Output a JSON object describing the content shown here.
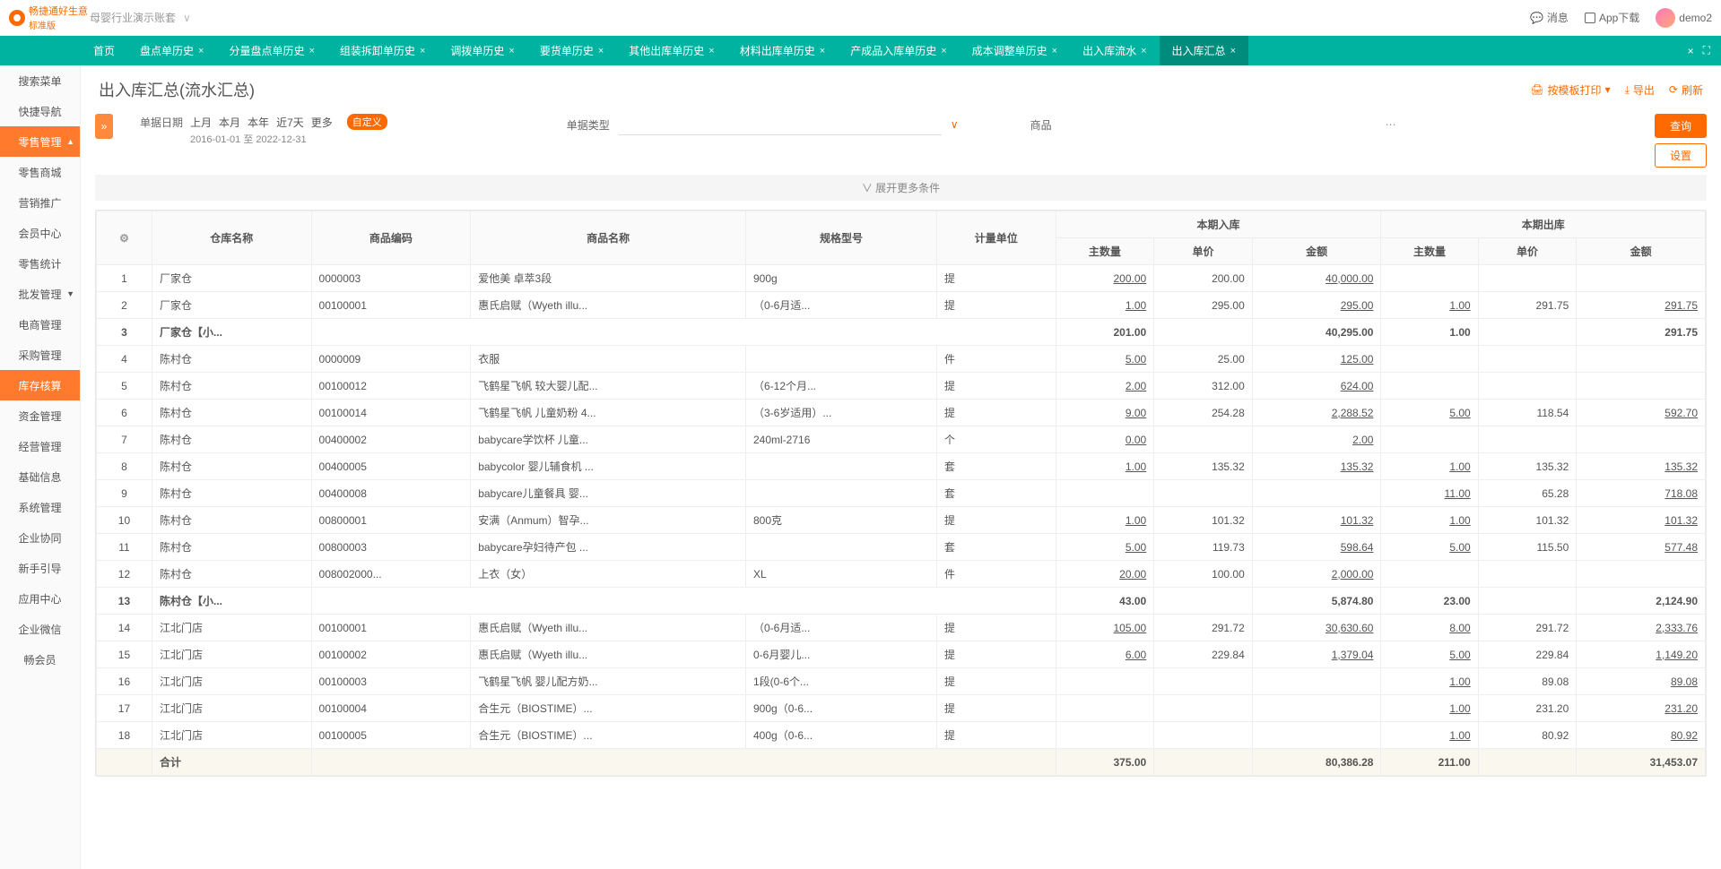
{
  "topbar": {
    "logo_text": "畅捷通好生意",
    "logo_badge": "标准版",
    "account": "母婴行业演示账套",
    "msg": "消息",
    "app": "App下载",
    "user": "demo2"
  },
  "tabs": [
    {
      "label": "首页",
      "closable": false
    },
    {
      "label": "盘点单历史",
      "closable": true
    },
    {
      "label": "分量盘点单历史",
      "closable": true
    },
    {
      "label": "组装拆卸单历史",
      "closable": true
    },
    {
      "label": "调拨单历史",
      "closable": true
    },
    {
      "label": "要货单历史",
      "closable": true
    },
    {
      "label": "其他出库单历史",
      "closable": true
    },
    {
      "label": "材料出库单历史",
      "closable": true
    },
    {
      "label": "产成品入库单历史",
      "closable": true
    },
    {
      "label": "成本调整单历史",
      "closable": true
    },
    {
      "label": "出入库流水",
      "closable": true
    },
    {
      "label": "出入库汇总",
      "closable": true,
      "active": true
    }
  ],
  "sidebar": [
    {
      "label": "搜索菜单"
    },
    {
      "label": "快捷导航"
    },
    {
      "label": "零售管理",
      "expand": "▲",
      "active": true
    },
    {
      "label": "零售商城"
    },
    {
      "label": "营销推广"
    },
    {
      "label": "会员中心"
    },
    {
      "label": "零售统计"
    },
    {
      "label": "批发管理",
      "expand": "▼"
    },
    {
      "label": "电商管理"
    },
    {
      "label": "采购管理"
    },
    {
      "label": "库存核算",
      "active": true
    },
    {
      "label": "资金管理"
    },
    {
      "label": "经营管理"
    },
    {
      "label": "基础信息"
    },
    {
      "label": "系统管理"
    },
    {
      "label": "企业协同"
    },
    {
      "label": "新手引导"
    },
    {
      "label": "应用中心"
    },
    {
      "label": "企业微信"
    },
    {
      "label": "畅会员"
    }
  ],
  "page": {
    "title": "出入库汇总(流水汇总)",
    "print": "按模板打印",
    "export": "导出",
    "refresh": "刷新"
  },
  "filter": {
    "date_label": "单据日期",
    "quick": [
      "上月",
      "本月",
      "本年",
      "近7天",
      "更多"
    ],
    "custom": "自定义",
    "range": "2016-01-01 至 2022-12-31",
    "type_label": "单据类型",
    "prod_label": "商品",
    "query": "查询",
    "setting": "设置",
    "expand": "展开更多条件"
  },
  "table": {
    "group_headers": {
      "in": "本期入库",
      "out": "本期出库"
    },
    "headers": {
      "idx": "",
      "wh": "仓库名称",
      "code": "商品编码",
      "name": "商品名称",
      "spec": "规格型号",
      "unit": "计量单位",
      "qty": "主数量",
      "price": "单价",
      "amt": "金额"
    },
    "rows": [
      {
        "n": "1",
        "wh": "厂家仓",
        "code": "0000003",
        "name": "爱他美 卓萃3段",
        "spec": "900g",
        "unit": "提",
        "iq": "200.00",
        "ip": "200.00",
        "ia": "40,000.00",
        "oq": "",
        "op": "",
        "oa": ""
      },
      {
        "n": "2",
        "wh": "厂家仓",
        "code": "00100001",
        "name": "惠氏启赋（Wyeth illu...",
        "spec": "（0-6月适...",
        "unit": "提",
        "iq": "1.00",
        "ip": "295.00",
        "ia": "295.00",
        "oq": "1.00",
        "op": "291.75",
        "oa": "291.75"
      },
      {
        "n": "3",
        "wh": "厂家仓【小...",
        "sub": true,
        "iq": "201.00",
        "ia": "40,295.00",
        "oq": "1.00",
        "oa": "291.75"
      },
      {
        "n": "4",
        "wh": "陈村仓",
        "code": "0000009",
        "name": "衣服",
        "spec": "",
        "unit": "件",
        "iq": "5.00",
        "ip": "25.00",
        "ia": "125.00"
      },
      {
        "n": "5",
        "wh": "陈村仓",
        "code": "00100012",
        "name": "飞鹤星飞帆 较大婴儿配...",
        "spec": "（6-12个月...",
        "unit": "提",
        "iq": "2.00",
        "ip": "312.00",
        "ia": "624.00"
      },
      {
        "n": "6",
        "wh": "陈村仓",
        "code": "00100014",
        "name": "飞鹤星飞帆 儿童奶粉 4...",
        "spec": "（3-6岁适用）...",
        "unit": "提",
        "iq": "9.00",
        "ip": "254.28",
        "ia": "2,288.52",
        "oq": "5.00",
        "op": "118.54",
        "oa": "592.70"
      },
      {
        "n": "7",
        "wh": "陈村仓",
        "code": "00400002",
        "name": "babycare学饮杯 儿童...",
        "spec": "240ml-2716",
        "unit": "个",
        "iq": "0.00",
        "ia": "2.00"
      },
      {
        "n": "8",
        "wh": "陈村仓",
        "code": "00400005",
        "name": "babycolor 婴儿辅食机 ...",
        "spec": "",
        "unit": "套",
        "iq": "1.00",
        "ip": "135.32",
        "ia": "135.32",
        "oq": "1.00",
        "op": "135.32",
        "oa": "135.32"
      },
      {
        "n": "9",
        "wh": "陈村仓",
        "code": "00400008",
        "name": "babycare儿童餐具 婴...",
        "spec": "",
        "unit": "套",
        "oq": "11.00",
        "op": "65.28",
        "oa": "718.08"
      },
      {
        "n": "10",
        "wh": "陈村仓",
        "code": "00800001",
        "name": "安满（Anmum）智孕...",
        "spec": "800克",
        "unit": "提",
        "iq": "1.00",
        "ip": "101.32",
        "ia": "101.32",
        "oq": "1.00",
        "op": "101.32",
        "oa": "101.32"
      },
      {
        "n": "11",
        "wh": "陈村仓",
        "code": "00800003",
        "name": "babycare孕妇待产包 ...",
        "spec": "",
        "unit": "套",
        "iq": "5.00",
        "ip": "119.73",
        "ia": "598.64",
        "oq": "5.00",
        "op": "115.50",
        "oa": "577.48"
      },
      {
        "n": "12",
        "wh": "陈村仓",
        "code": "008002000...",
        "name": "上衣（女）",
        "spec": "XL",
        "unit": "件",
        "iq": "20.00",
        "ip": "100.00",
        "ia": "2,000.00"
      },
      {
        "n": "13",
        "wh": "陈村仓【小...",
        "sub": true,
        "iq": "43.00",
        "ia": "5,874.80",
        "oq": "23.00",
        "oa": "2,124.90"
      },
      {
        "n": "14",
        "wh": "江北门店",
        "code": "00100001",
        "name": "惠氏启赋（Wyeth illu...",
        "spec": "（0-6月适...",
        "unit": "提",
        "iq": "105.00",
        "ip": "291.72",
        "ia": "30,630.60",
        "oq": "8.00",
        "op": "291.72",
        "oa": "2,333.76"
      },
      {
        "n": "15",
        "wh": "江北门店",
        "code": "00100002",
        "name": "惠氏启赋（Wyeth illu...",
        "spec": "0-6月婴儿...",
        "unit": "提",
        "iq": "6.00",
        "ip": "229.84",
        "ia": "1,379.04",
        "oq": "5.00",
        "op": "229.84",
        "oa": "1,149.20"
      },
      {
        "n": "16",
        "wh": "江北门店",
        "code": "00100003",
        "name": "飞鹤星飞帆 婴儿配方奶...",
        "spec": "1段(0-6个...",
        "unit": "提",
        "oq": "1.00",
        "op": "89.08",
        "oa": "89.08"
      },
      {
        "n": "17",
        "wh": "江北门店",
        "code": "00100004",
        "name": "合生元（BIOSTIME）...",
        "spec": "900g（0-6...",
        "unit": "提",
        "oq": "1.00",
        "op": "231.20",
        "oa": "231.20"
      },
      {
        "n": "18",
        "wh": "江北门店",
        "code": "00100005",
        "name": "合生元（BIOSTIME）...",
        "spec": "400g（0-6...",
        "unit": "提",
        "oq": "1.00",
        "op": "80.92",
        "oa": "80.92"
      }
    ],
    "total": {
      "label": "合计",
      "iq": "375.00",
      "ia": "80,386.28",
      "oq": "211.00",
      "oa": "31,453.07"
    }
  },
  "glyph": {
    "chev_down": "∨",
    "close": "×",
    "expand": "⛶",
    "chev_r": "»",
    "refresh": "⟳",
    "export": "⤓",
    "print": "🖨",
    "msg": "💬",
    "down_sm": "▾",
    "gear": "⚙"
  }
}
